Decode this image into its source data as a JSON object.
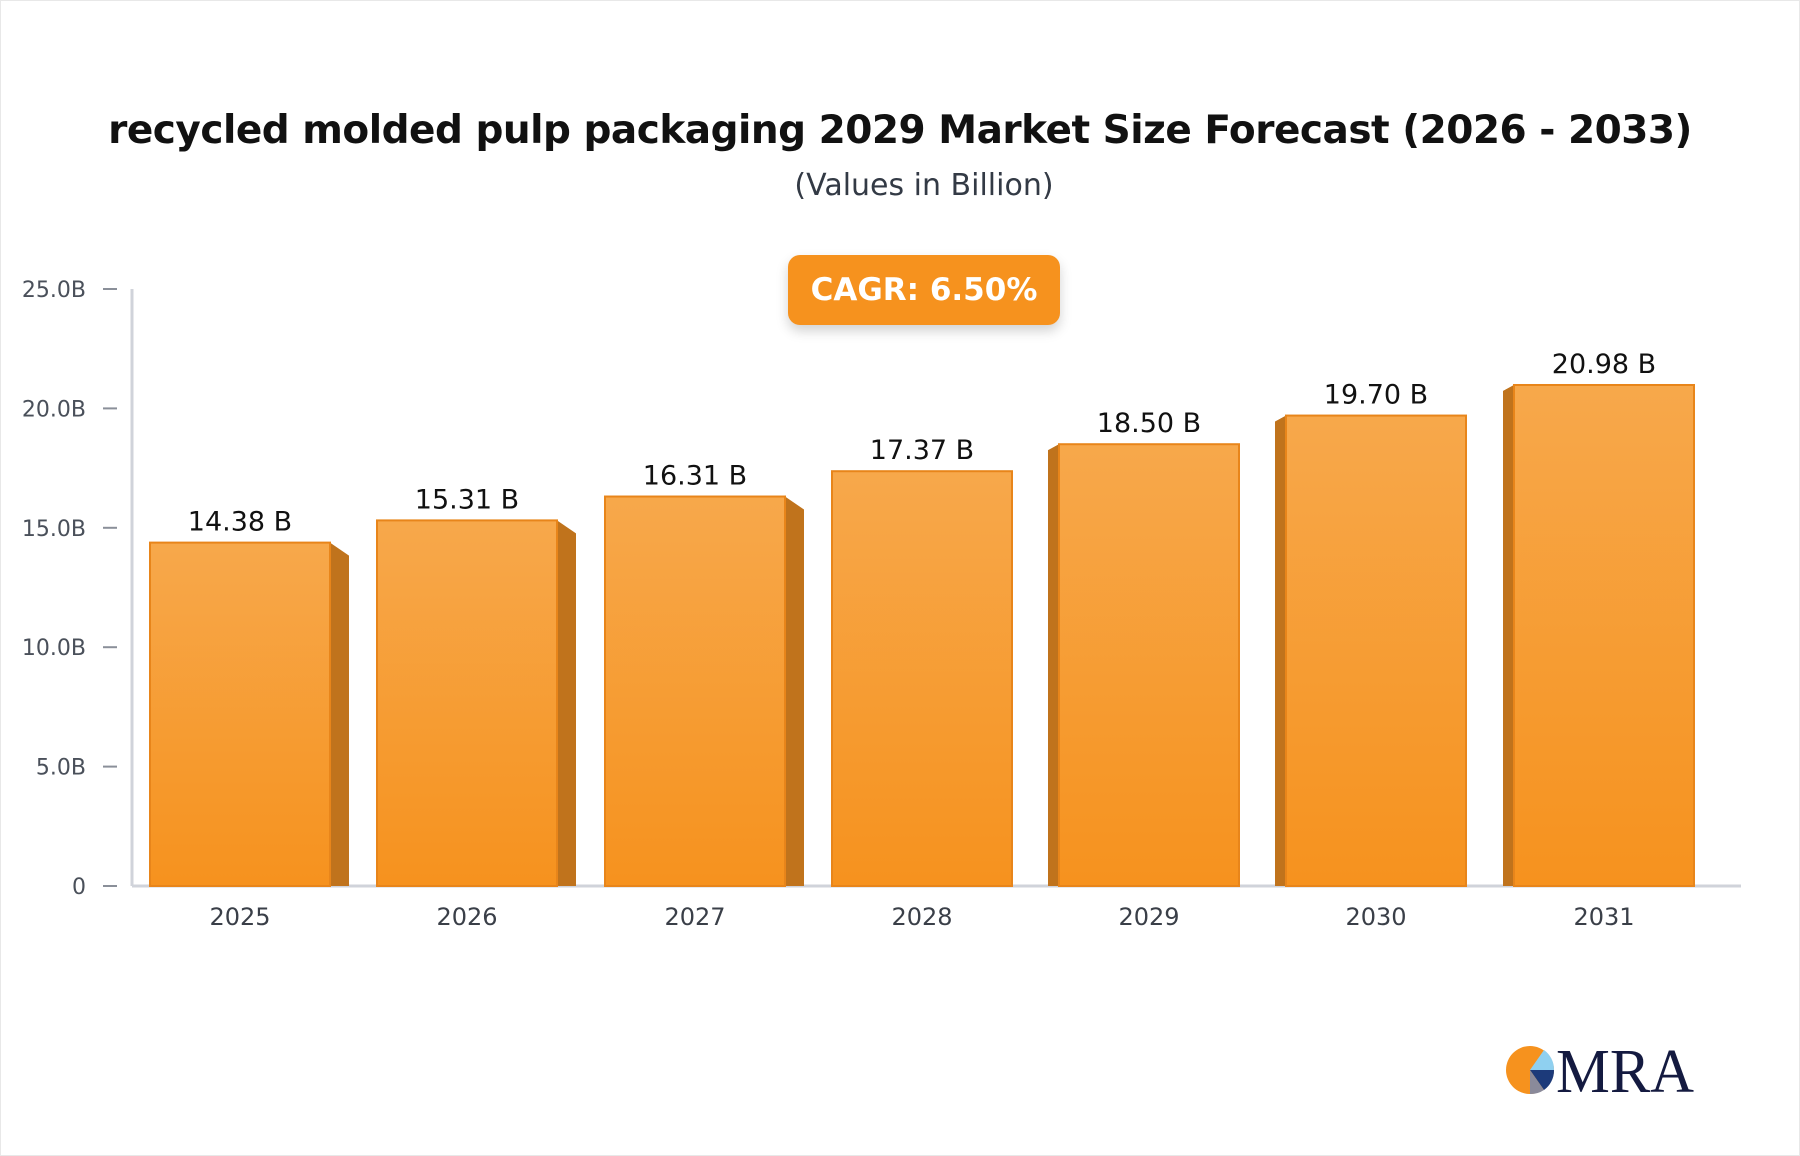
{
  "chart_data": {
    "type": "bar",
    "title": "recycled molded pulp packaging 2029 Market Size Forecast (2026 - 2033)",
    "subtitle": "(Values in Billion)",
    "annotation": "CAGR: 6.50%",
    "categories": [
      "2025",
      "2026",
      "2027",
      "2028",
      "2029",
      "2030",
      "2031"
    ],
    "values": [
      14.38,
      15.31,
      16.31,
      17.37,
      18.5,
      19.7,
      20.98
    ],
    "data_labels": [
      "14.38 B",
      "15.31 B",
      "16.31 B",
      "17.37 B",
      "18.50 B",
      "19.70 B",
      "20.98 B"
    ],
    "ylim": [
      0,
      25
    ],
    "yticks": [
      0,
      5,
      10,
      15,
      20,
      25
    ],
    "ytick_labels": [
      "0",
      "5.0B",
      "10.0B",
      "15.0B",
      "20.0B",
      "25.0B"
    ],
    "xlabel": "",
    "ylabel": "",
    "grid": false,
    "colors": {
      "bar": "#f6a040",
      "bar_side": "#c0731c",
      "cagr_badge": "#f6921e"
    }
  },
  "logo": {
    "text": "MRA"
  }
}
